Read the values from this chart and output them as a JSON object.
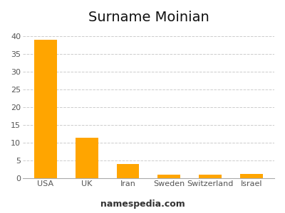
{
  "title": "Surname Moinian",
  "categories": [
    "USA",
    "UK",
    "Iran",
    "Sweden",
    "Switzerland",
    "Israel"
  ],
  "values": [
    39,
    11.5,
    4,
    1,
    1,
    1.2
  ],
  "bar_color": "#FFA500",
  "background_color": "#ffffff",
  "ylim": [
    0,
    42
  ],
  "yticks": [
    0,
    5,
    10,
    15,
    20,
    25,
    30,
    35,
    40
  ],
  "grid_color": "#cccccc",
  "title_fontsize": 14,
  "tick_fontsize": 8,
  "footer_text": "namespedia.com",
  "footer_fontsize": 9
}
